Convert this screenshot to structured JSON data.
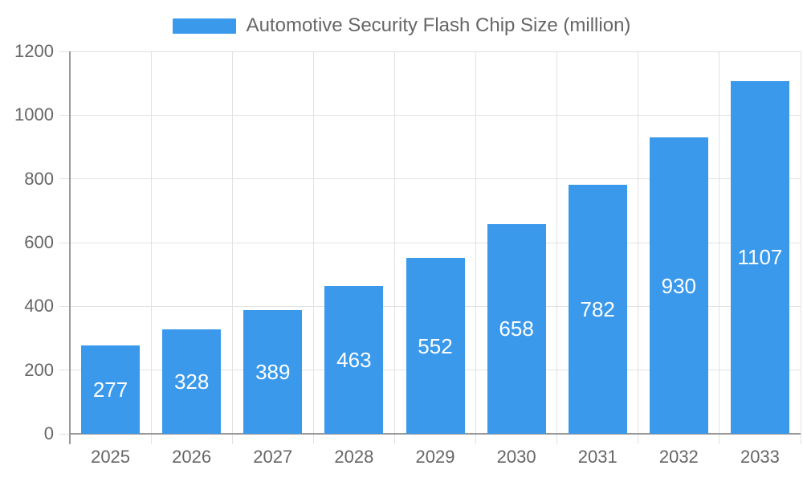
{
  "legend": {
    "label": "Automotive Security Flash Chip Size (million)"
  },
  "colors": {
    "bar": "#3A99EB",
    "bar_label": "#FFFFFF",
    "axis_line": "#999999",
    "grid_line": "#E2E2E2",
    "tick_label": "#666666",
    "legend_text": "#666666",
    "background": "#FFFFFF"
  },
  "chart_data": {
    "type": "bar",
    "title": "Automotive Security Flash Chip Size (million)",
    "series": [
      {
        "name": "Automotive Security Flash Chip Size (million)",
        "values": [
          277,
          328,
          389,
          463,
          552,
          658,
          782,
          930,
          1107
        ]
      }
    ],
    "categories": [
      "2025",
      "2026",
      "2027",
      "2028",
      "2029",
      "2030",
      "2031",
      "2032",
      "2033"
    ],
    "values": [
      277,
      328,
      389,
      463,
      552,
      658,
      782,
      930,
      1107
    ],
    "xlabel": "",
    "ylabel": "",
    "ylim": [
      0,
      1200
    ],
    "yticks": [
      0,
      200,
      400,
      600,
      800,
      1000,
      1200
    ],
    "grid": true,
    "legend_position": "top-center",
    "value_labels": "inside-center"
  }
}
